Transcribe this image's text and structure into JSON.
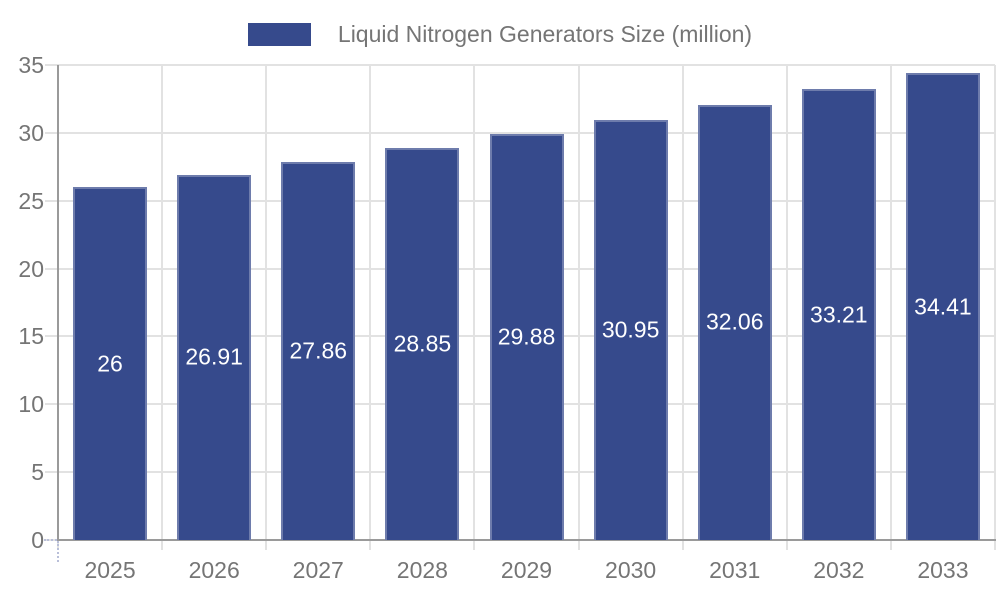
{
  "legend": {
    "label": "Liquid Nitrogen Generators Size (million)"
  },
  "colors": {
    "bar_fill": "#364a8c",
    "bar_edge_highlight": "rgba(255,255,255,0.28)",
    "bar_label_text": "#ffffff",
    "axis_line": "#9a9a9a",
    "gridline": "#e2e2e2",
    "tick_label_text": "#757575",
    "legend_text": "#757575",
    "background": "#ffffff"
  },
  "chart_data": {
    "type": "bar",
    "title": "Liquid Nitrogen Generators Size (million)",
    "categories": [
      "2025",
      "2026",
      "2027",
      "2028",
      "2029",
      "2030",
      "2031",
      "2032",
      "2033"
    ],
    "values": [
      26,
      26.91,
      27.86,
      28.85,
      29.88,
      30.95,
      32.06,
      33.21,
      34.41
    ],
    "value_labels": [
      "26",
      "26.91",
      "27.86",
      "28.85",
      "29.88",
      "30.95",
      "32.06",
      "33.21",
      "34.41"
    ],
    "xlabel": "",
    "ylabel": "",
    "ylim": [
      0,
      35
    ],
    "ytick_step": 5,
    "ytick_labels": [
      "0",
      "5",
      "10",
      "15",
      "20",
      "25",
      "30",
      "35"
    ],
    "grid": true,
    "legend_position": "top-center",
    "value_label_position": "inside-center",
    "series_name": "Liquid Nitrogen Generators Size (million)"
  }
}
